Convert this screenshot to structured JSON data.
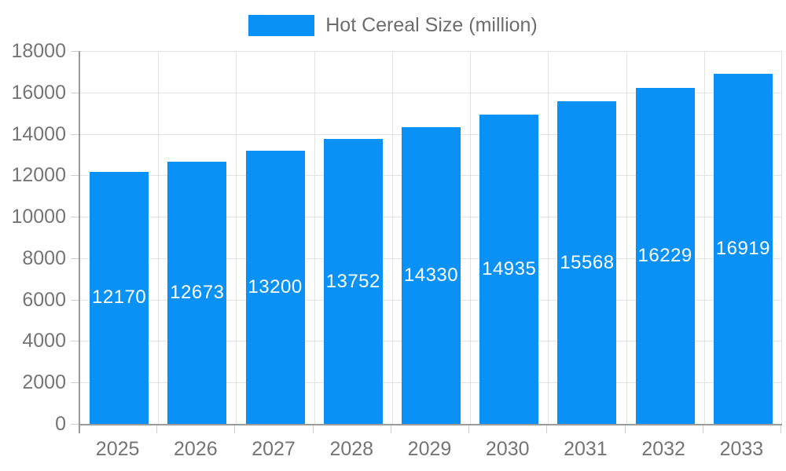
{
  "chart_data": {
    "type": "bar",
    "title": "",
    "legend": {
      "label": "Hot Cereal Size (million)",
      "position": "top"
    },
    "categories": [
      "2025",
      "2026",
      "2027",
      "2028",
      "2029",
      "2030",
      "2031",
      "2032",
      "2033"
    ],
    "series": [
      {
        "name": "Hot Cereal Size (million)",
        "values": [
          12170,
          12673,
          13200,
          13752,
          14330,
          14935,
          15568,
          16229,
          16919
        ]
      }
    ],
    "value_labels_visible": true,
    "xlabel": "",
    "ylabel": "",
    "ylim": [
      0,
      18000
    ],
    "ytick_step": 2000,
    "yticks": [
      0,
      2000,
      4000,
      6000,
      8000,
      10000,
      12000,
      14000,
      16000,
      18000
    ],
    "grid": true,
    "colors": {
      "bar": "#0991f5",
      "value_label": "#ffffff",
      "axis_text": "#757575",
      "legend_text": "#6d6d6d",
      "grid_line": "#e3e3e3",
      "axis_line": "#9b9b9b",
      "tick_mark": "#cfcfcf",
      "background": "#ffffff"
    }
  }
}
